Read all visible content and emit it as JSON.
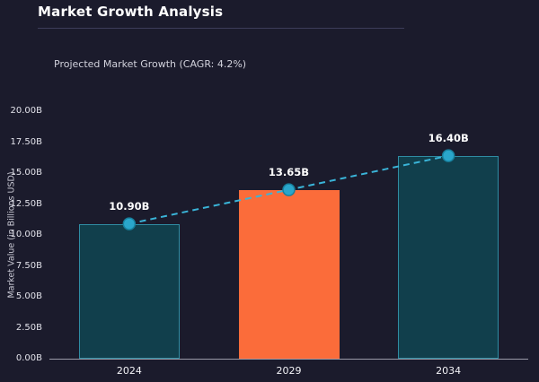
{
  "title": "Market Growth Analysis",
  "subtitle": "Projected Market Growth (CAGR: 4.2%)",
  "chart_data": {
    "type": "bar",
    "categories": [
      "2024",
      "2029",
      "2034"
    ],
    "values": [
      10.9,
      13.65,
      16.4
    ],
    "value_labels": [
      "10.90B",
      "13.65B",
      "16.40B"
    ],
    "bar_fill_colors": [
      "#113f4c",
      "#fb6c3a",
      "#113f4c"
    ],
    "bar_border_colors": [
      "#2f8ca3",
      "#fb6c3a",
      "#2f8ca3"
    ],
    "trend_line": {
      "color": "#3ab4d8",
      "style": "dashed",
      "marker_fill": "#2aa6cb",
      "marker_stroke": "#17809d"
    },
    "title": "Market Growth Analysis",
    "subtitle": "Projected Market Growth (CAGR: 4.2%)",
    "xlabel": "",
    "ylabel": "Market Value (in Billions USD)",
    "ylim": [
      0,
      20
    ],
    "yticks": [
      "0.00B",
      "2.50B",
      "5.00B",
      "7.50B",
      "10.00B",
      "12.50B",
      "15.00B",
      "17.50B",
      "20.00B"
    ],
    "grid": false,
    "legend": false
  },
  "colors": {
    "background": "#1b1b2c",
    "text": "#ffffff",
    "muted": "#c9c9d4",
    "axis": "#9a9aa8"
  }
}
